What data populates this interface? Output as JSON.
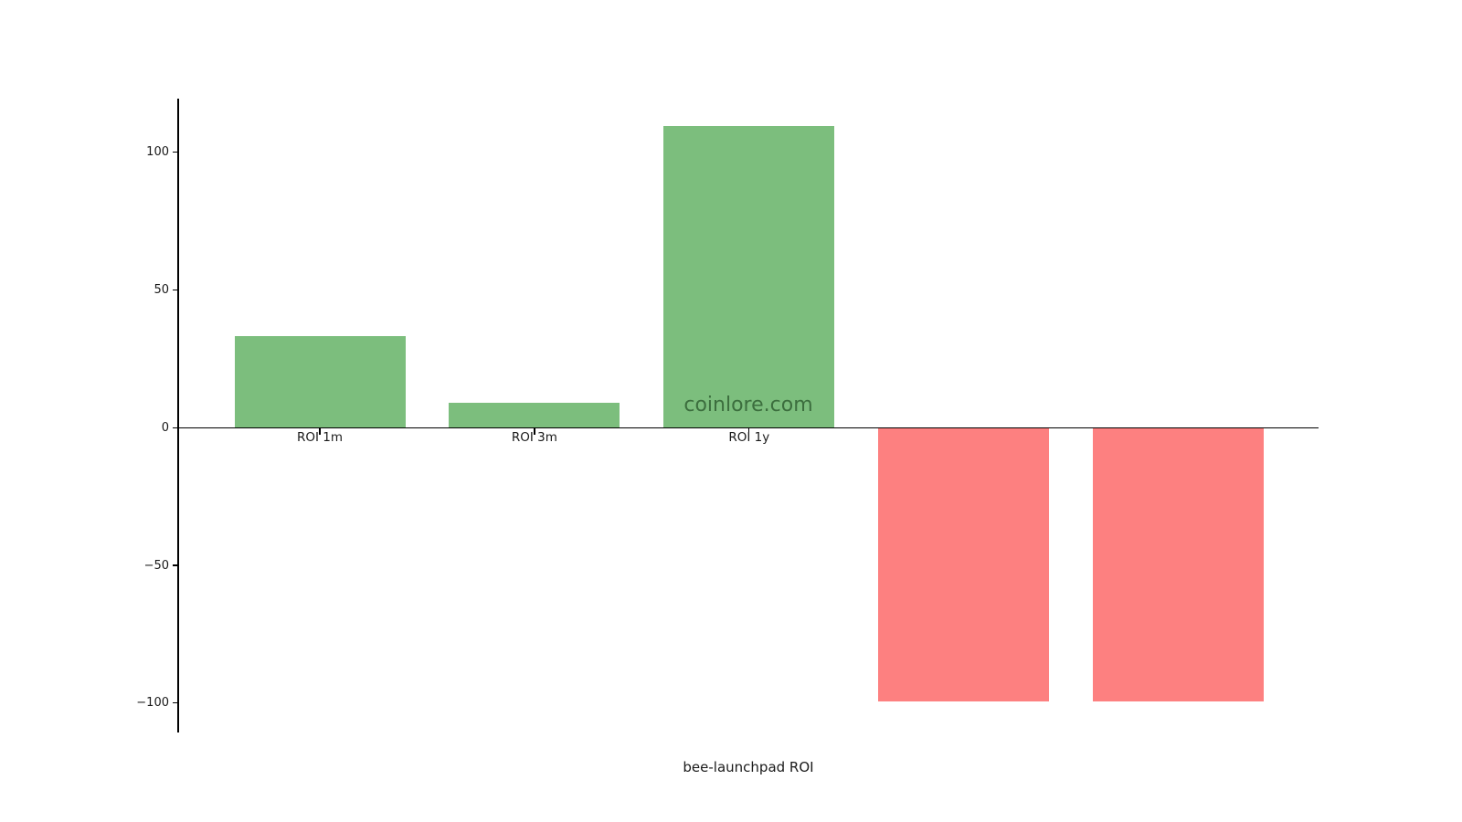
{
  "chart_data": {
    "type": "bar",
    "categories": [
      "ROI 1m",
      "ROI 3m",
      "ROI 1y",
      "",
      ""
    ],
    "values": [
      33.4,
      9.1,
      109.6,
      -99.4,
      -99.4
    ],
    "title": "",
    "xlabel": "bee-launchpad ROI",
    "ylabel": "",
    "yticks": [
      100,
      50,
      0,
      -50,
      -100
    ],
    "ylim": [
      -110.7,
      119.5
    ],
    "grid": false,
    "legend": false,
    "positive_color": "#7cbe7d",
    "negative_color": "#fd8080",
    "axis_color": "#000000",
    "tick_label_color": "#1a1a1a",
    "watermark": {
      "text": "coinlore.com",
      "color": "#3c6e3e"
    }
  }
}
